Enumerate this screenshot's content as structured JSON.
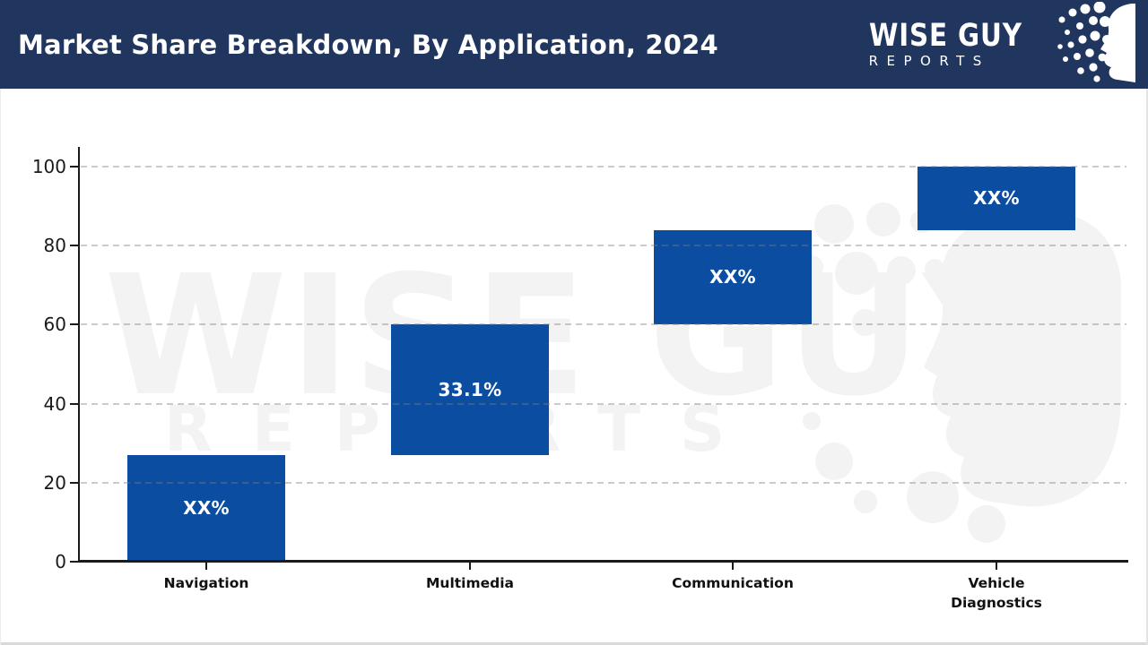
{
  "header": {
    "title": "Market Share Breakdown, By Application, 2024",
    "background_color": "#21365E",
    "logo": {
      "line1": "WISE GUY",
      "line2": "REPORTS",
      "face_icon": "dotted-face-profile"
    }
  },
  "watermark": {
    "line1": "WISE GUY",
    "line2": "REPORTS"
  },
  "chart_data": {
    "type": "bar",
    "subtype": "floating-waterfall",
    "title": "Market Share Breakdown, By Application, 2024",
    "categories": [
      "Navigation",
      "Multimedia",
      "Communication",
      "Vehicle Diagnostics"
    ],
    "series": [
      {
        "name": "Market Share (%)",
        "segments": [
          {
            "category": "Navigation",
            "start": 0,
            "end": 27,
            "label": "XX%"
          },
          {
            "category": "Multimedia",
            "start": 27,
            "end": 60,
            "label": "33.1%"
          },
          {
            "category": "Communication",
            "start": 60,
            "end": 84,
            "label": "XX%"
          },
          {
            "category": "Vehicle Diagnostics",
            "start": 84,
            "end": 100,
            "label": "XX%"
          }
        ]
      }
    ],
    "xlabel": "",
    "ylabel": "",
    "ylim": [
      0,
      105
    ],
    "yticks": [
      0,
      20,
      40,
      60,
      80,
      100
    ],
    "grid": "horizontal-dashed",
    "legend": "none",
    "bar_color": "#0B4DA1",
    "bar_label_color": "#ffffff",
    "axis_color": "#1a1a1a"
  }
}
